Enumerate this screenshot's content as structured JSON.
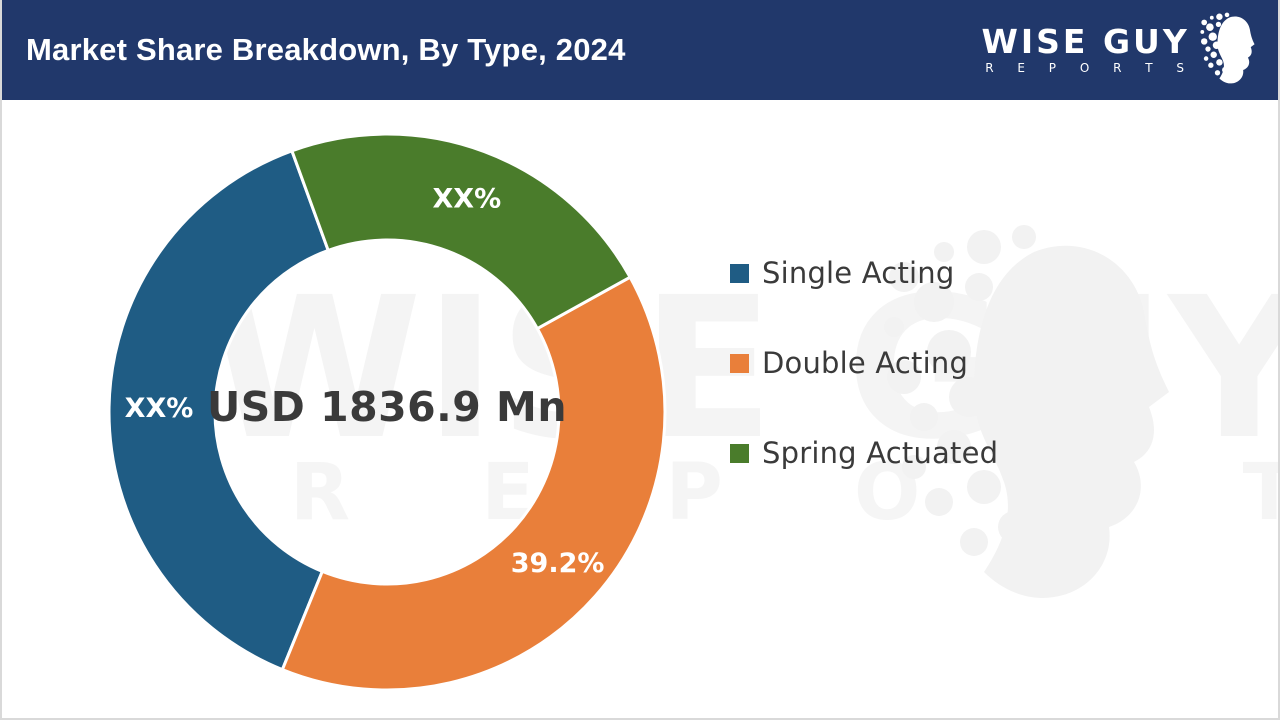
{
  "header": {
    "title": "Market Share Breakdown, By Type, 2024",
    "background_color": "#21386B",
    "logo": {
      "line1": "WISE GUY",
      "line2": "R E P O R T S"
    }
  },
  "watermark": {
    "line1": "WISE GUY",
    "line2": "R E P O R T S"
  },
  "chart_data": {
    "type": "pie",
    "subtype": "donut",
    "title": "Market Share Breakdown, By Type, 2024",
    "center_label": "USD 1836.9 Mn",
    "legend_position": "right",
    "slices": [
      {
        "name": "Single Acting",
        "color": "#1F5C84",
        "display_label": "XX%",
        "value_pct_est": 38.3,
        "start_deg": 202.1,
        "end_deg": 340
      },
      {
        "name": "Double Acting",
        "color": "#E97F3A",
        "display_label": "39.2%",
        "value_pct_est": 39.2,
        "start_deg": 61,
        "end_deg": 202.1
      },
      {
        "name": "Spring Actuated",
        "color": "#4A7C2B",
        "display_label": "XX%",
        "value_pct_est": 22.5,
        "start_deg": -20,
        "end_deg": 61
      }
    ]
  }
}
